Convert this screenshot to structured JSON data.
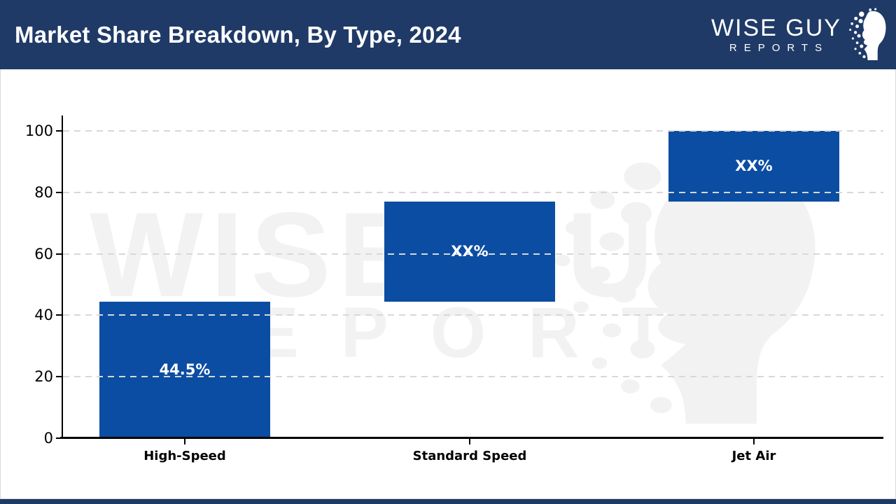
{
  "header": {
    "title": "Market Share Breakdown, By Type, 2024",
    "bg_color": "#1f3a67",
    "logo": {
      "brand_line1": "WISE GUY",
      "brand_line2": "REPORTS"
    }
  },
  "watermark": {
    "line1": "WISE GUY",
    "line2": "REPORTS"
  },
  "chart_data": {
    "type": "bar",
    "variant": "waterfall-floating-bars",
    "title": "Market Share Breakdown, By Type, 2024",
    "categories": [
      "High-Speed",
      "Standard Speed",
      "Jet Air"
    ],
    "bars": [
      {
        "category": "High-Speed",
        "start": 0,
        "end": 44.5,
        "label": "44.5%"
      },
      {
        "category": "Standard Speed",
        "start": 44.5,
        "end": 77,
        "label": "XX%"
      },
      {
        "category": "Jet Air",
        "start": 77,
        "end": 100,
        "label": "XX%"
      }
    ],
    "xlabel": "",
    "ylabel": "",
    "ylim": [
      0,
      100
    ],
    "yticks": [
      0,
      20,
      40,
      60,
      80,
      100
    ],
    "grid": {
      "axis": "y",
      "style": "dashed",
      "color": "#d8d8d8",
      "on_top_of_bars": true
    },
    "legend": "none",
    "bar_color": "#0b4da2",
    "bar_label_color": "#ffffff",
    "axis_color": "#000000"
  },
  "footer": {
    "bar_color": "#1f3a67"
  }
}
